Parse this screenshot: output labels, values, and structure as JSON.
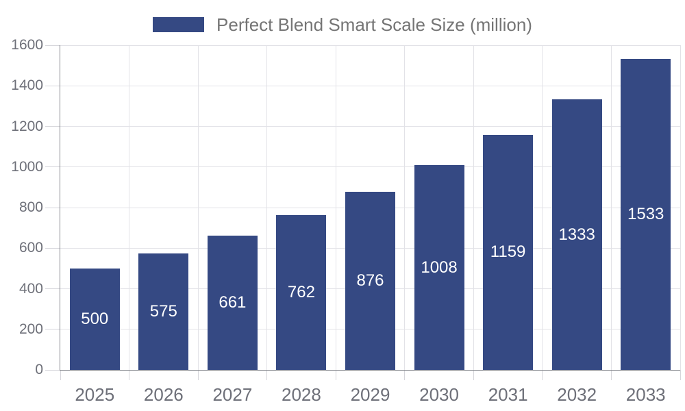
{
  "legend": {
    "label": "Perfect Blend Smart Scale Size (million)",
    "swatch_color": "#354983",
    "position": "top"
  },
  "chart_data": {
    "type": "bar",
    "title": "",
    "xlabel": "",
    "ylabel": "",
    "categories": [
      "2025",
      "2026",
      "2027",
      "2028",
      "2029",
      "2030",
      "2031",
      "2032",
      "2033"
    ],
    "series": [
      {
        "name": "Perfect Blend Smart Scale Size (million)",
        "values": [
          500,
          575,
          661,
          762,
          876,
          1008,
          1159,
          1333,
          1533
        ]
      }
    ],
    "ylim": [
      0,
      1600
    ],
    "ytick_interval": 200,
    "ytick_labels": [
      "0",
      "200",
      "400",
      "600",
      "800",
      "1000",
      "1200",
      "1400",
      "1600"
    ],
    "grid": true,
    "value_labels_shown": true,
    "legend_position": "top"
  },
  "colors": {
    "bar": "#354983",
    "value_label": "#ffffff",
    "axis_label": "#6e7079",
    "legend_text": "#757575",
    "gridline": "#e2e2e7",
    "axis_line": "#85878d",
    "tick": "#d6d6db",
    "background": "#ffffff"
  }
}
